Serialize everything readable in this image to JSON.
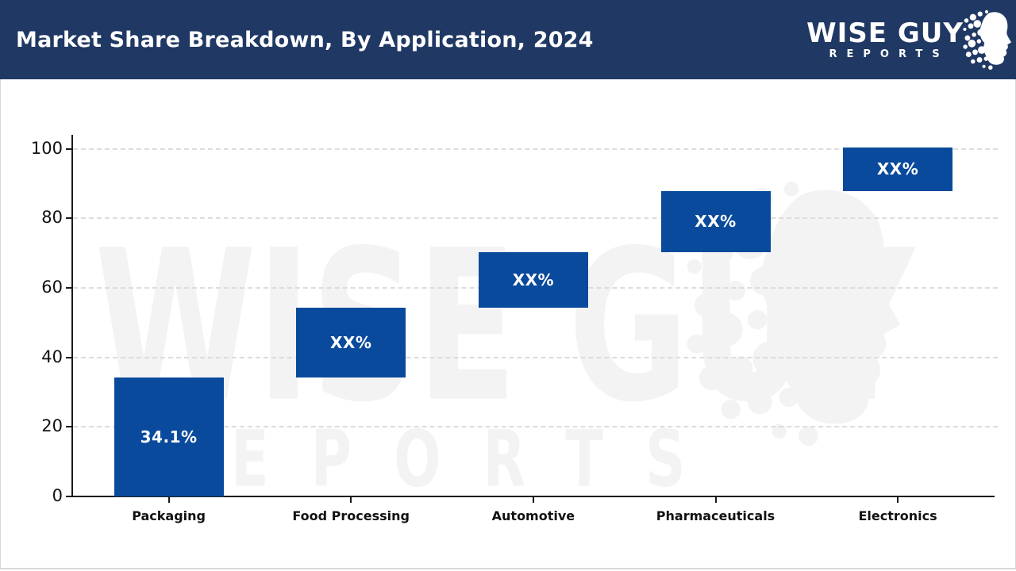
{
  "header": {
    "title": "Market Share Breakdown, By Application, 2024",
    "logo": {
      "line1": "WISE GUY",
      "line2": "REPORTS",
      "icon": "face-profile-dots-icon"
    }
  },
  "watermark": {
    "line1": "WISE GUY",
    "line2": "REPORTS"
  },
  "colors": {
    "header_bg": "#203864",
    "bar": "#0a4a9c",
    "bar_label": "#ffffff",
    "grid": "#dcdcdc",
    "axis": "#1a1a1a",
    "watermark": "#f3f3f3",
    "edge_border": "#d9d9d9"
  },
  "chart_data": {
    "type": "bar",
    "subtype": "waterfall",
    "title": "Market Share Breakdown, By Application, 2024",
    "xlabel": "",
    "ylabel": "",
    "categories": [
      "Packaging",
      "Food Processing",
      "Automotive",
      "Pharmaceuticals",
      "Electronics"
    ],
    "segments": [
      {
        "category": "Packaging",
        "start": 0,
        "end": 34.1,
        "label": "34.1%"
      },
      {
        "category": "Food Processing",
        "start": 34.1,
        "end": 54.3,
        "label": "XX%"
      },
      {
        "category": "Automotive",
        "start": 54.3,
        "end": 70.3,
        "label": "XX%"
      },
      {
        "category": "Pharmaceuticals",
        "start": 70.3,
        "end": 87.9,
        "label": "XX%"
      },
      {
        "category": "Electronics",
        "start": 87.9,
        "end": 100.4,
        "label": "XX%"
      }
    ],
    "y_ticks": [
      0,
      20,
      40,
      60,
      80,
      100
    ],
    "ylim": [
      0,
      104
    ],
    "grid": "horizontal-dashed",
    "legend": "none",
    "bar_color": "#0a4a9c",
    "value_label_position": "inside-center"
  }
}
